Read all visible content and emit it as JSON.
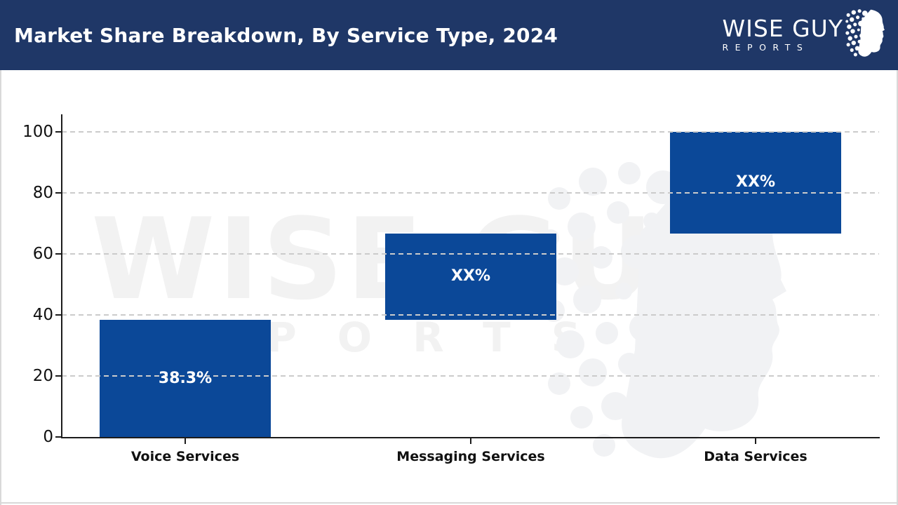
{
  "page": {
    "background": "#ffffff",
    "border_color": "#d9d9d9"
  },
  "header": {
    "bg_color": "#1f3767",
    "title": "Market Share Breakdown, By Service Type, 2024",
    "logo": {
      "wordmark": "WISE GUY",
      "subtitle": "REPORTS"
    }
  },
  "watermark": {
    "wordmark": "WISE GUY",
    "subtitle": "REPORTS"
  },
  "chart_data": {
    "type": "bar",
    "subtype": "waterfall",
    "title": "Market Share Breakdown, By Service Type, 2024",
    "categories": [
      "Voice Services",
      "Messaging Services",
      "Data Services"
    ],
    "bars": [
      {
        "category": "Voice Services",
        "start": 0,
        "end": 38.3,
        "value": 38.3,
        "label": "38.3%"
      },
      {
        "category": "Messaging Services",
        "start": 38.3,
        "end": 66.7,
        "value": 28.4,
        "label": "XX%"
      },
      {
        "category": "Data Services",
        "start": 66.7,
        "end": 100,
        "value": 33.3,
        "label": "XX%"
      }
    ],
    "ylim": [
      0,
      100
    ],
    "yticks": [
      0,
      20,
      40,
      60,
      80,
      100
    ],
    "bar_color": "#0b4898",
    "bar_label_color": "#ffffff",
    "axis_color": "#1c1c1c",
    "tick_label_color": "#111111",
    "grid": {
      "axis": "y",
      "style": "dashed",
      "color": "#cbcbcb",
      "drawn_above_bars": true
    },
    "legend": null
  }
}
